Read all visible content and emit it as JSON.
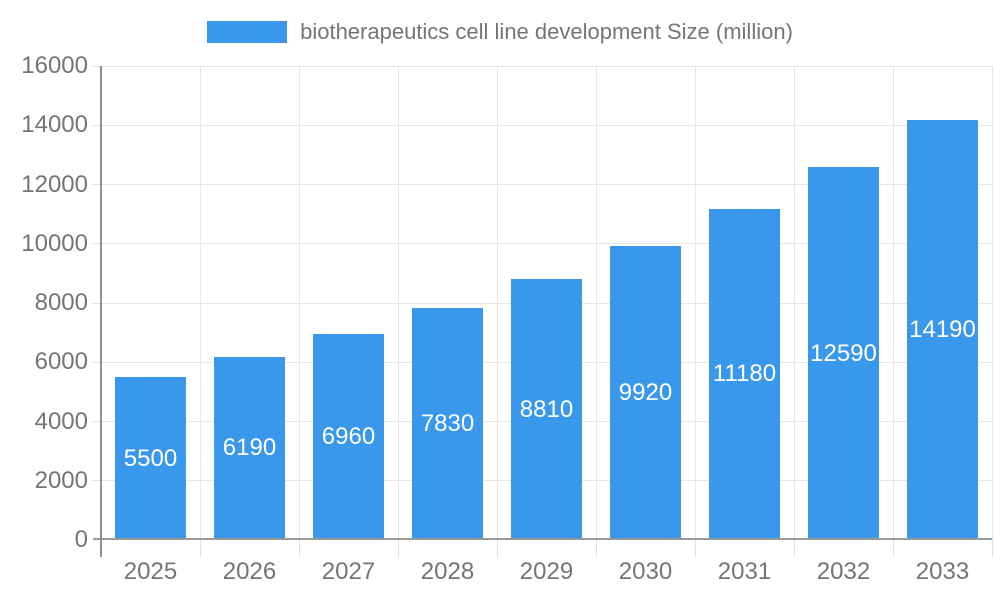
{
  "legend": {
    "label": "biotherapeutics cell line development Size (million)"
  },
  "chart_data": {
    "type": "bar",
    "title": "biotherapeutics cell line development Size (million)",
    "categories": [
      "2025",
      "2026",
      "2027",
      "2028",
      "2029",
      "2030",
      "2031",
      "2032",
      "2033"
    ],
    "series": [
      {
        "name": "biotherapeutics cell line development Size (million)",
        "values": [
          5500,
          6190,
          6960,
          7830,
          8810,
          9920,
          11180,
          12590,
          14190
        ]
      }
    ],
    "values": [
      5500,
      6190,
      6960,
      7830,
      8810,
      9920,
      11180,
      12590,
      14190
    ],
    "value_labels": [
      "5500",
      "6190",
      "6960",
      "7830",
      "8810",
      "9920",
      "11180",
      "12590",
      "14190"
    ],
    "xlabel": "",
    "ylabel": "",
    "ylim": [
      0,
      16000
    ],
    "ytick_step": 2000,
    "ytick_labels": [
      "0",
      "2000",
      "4000",
      "6000",
      "8000",
      "10000",
      "12000",
      "14000",
      "16000"
    ],
    "grid": "both",
    "legend_position": "top-center",
    "bar_color": "#3a98ec",
    "value_label_color": "#ffffff",
    "axis_text_color": "#757575",
    "gridline_color": "#e6e6e6",
    "axis_line_color": "#999999"
  }
}
